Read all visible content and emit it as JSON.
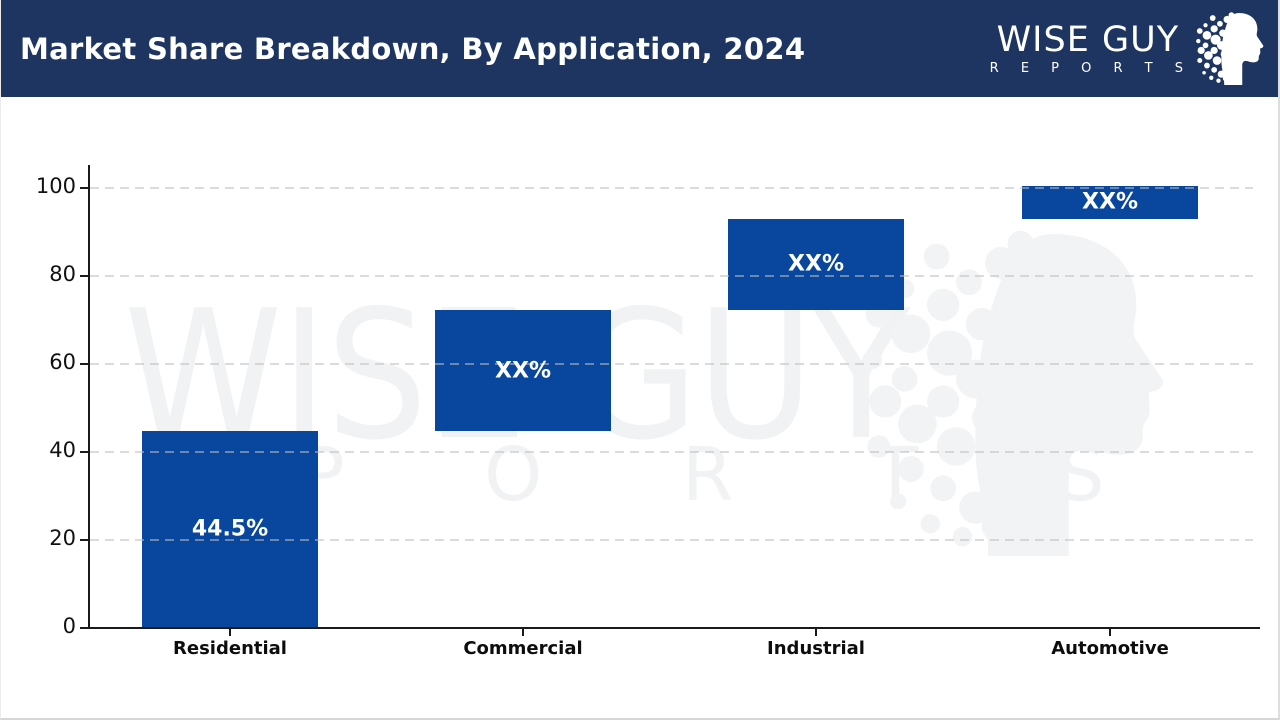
{
  "header": {
    "title": "Market Share Breakdown, By Application, 2024",
    "bg_color": "#1e3562",
    "logo": {
      "line1": "WISE GUY",
      "line2": "R E P O R T S"
    }
  },
  "watermark": {
    "line1": "WISE GUY",
    "line2": "P O R T S"
  },
  "chart_data": {
    "type": "bar",
    "subtype": "waterfall-floating-bars",
    "title": "",
    "xlabel": "",
    "ylabel": "",
    "categories": [
      "Residential",
      "Commercial",
      "Industrial",
      "Automotive"
    ],
    "segments": [
      {
        "category": "Residential",
        "start": 0,
        "end": 44.5,
        "label": "44.5%"
      },
      {
        "category": "Commercial",
        "start": 44.5,
        "end": 72,
        "label": "XX%"
      },
      {
        "category": "Industrial",
        "start": 72,
        "end": 92.8,
        "label": "XX%"
      },
      {
        "category": "Automotive",
        "start": 92.8,
        "end": 100.3,
        "label": "XX%"
      }
    ],
    "yticks": [
      0,
      20,
      40,
      60,
      80,
      100
    ],
    "ylim": [
      0,
      105
    ],
    "bar_color": "#08479d",
    "grid": "horizontal dashed, drawn over bars",
    "legend": "none"
  }
}
